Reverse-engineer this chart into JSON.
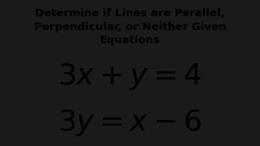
{
  "background_color": "#ffffff",
  "border_color": "#000000",
  "title_line1": "Determine if Lines are Parallel,",
  "title_line2": "Perpendicular, or Neither Given",
  "title_line3": "Equations",
  "eq1": "$3x + y = 4$",
  "eq2": "$3y = x - 6$",
  "title_fontsize": 9.5,
  "eq_fontsize": 26,
  "title_color": "#000000",
  "eq_color": "#000000",
  "outer_bg": "#1a1a1a"
}
